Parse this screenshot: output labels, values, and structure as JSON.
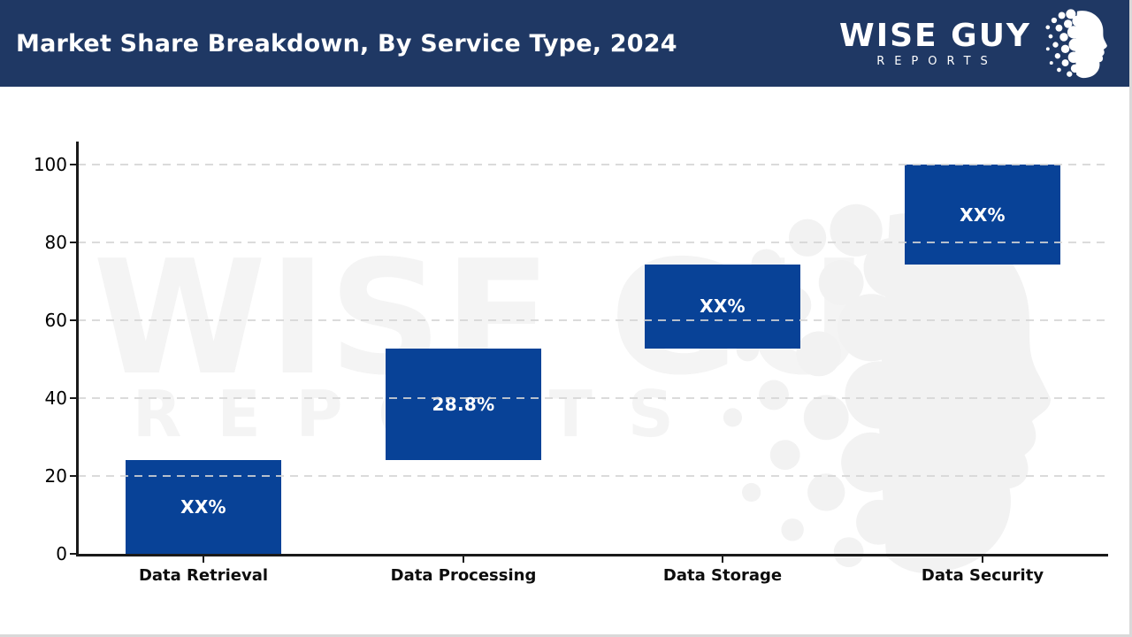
{
  "header": {
    "title": "Market Share Breakdown, By Service Type, 2024",
    "bg_color": "#1f3864",
    "logo": {
      "wordmark": "WISE GUY",
      "subtext": "REPORTS"
    }
  },
  "watermark": {
    "wordmark": "WISE GUY",
    "subtext": "REPORTS"
  },
  "chart_data": {
    "type": "bar",
    "subtype": "waterfall",
    "title": "Market Share Breakdown, By Service Type, 2024",
    "categories": [
      "Data Retrieval",
      "Data Processing",
      "Data Storage",
      "Data Security"
    ],
    "segments": [
      {
        "category": "Data Retrieval",
        "start": 0,
        "end": 24,
        "label": "XX%"
      },
      {
        "category": "Data Processing",
        "start": 24,
        "end": 52.8,
        "label": "28.8%"
      },
      {
        "category": "Data Storage",
        "start": 52.8,
        "end": 74.3,
        "label": "XX%"
      },
      {
        "category": "Data Security",
        "start": 74.3,
        "end": 100,
        "label": "XX%"
      }
    ],
    "bar_labels": [
      "XX%",
      "28.8%",
      "XX%",
      "XX%"
    ],
    "ylim": [
      0,
      100
    ],
    "yticks": [
      0,
      20,
      40,
      60,
      80,
      100
    ],
    "grid": "horizontal-dashed",
    "legend": "none",
    "bar_color": "#084297",
    "bar_label_color": "#ffffff",
    "grid_color": "#d5d5d5",
    "axis_color": "#1a1a1a"
  }
}
